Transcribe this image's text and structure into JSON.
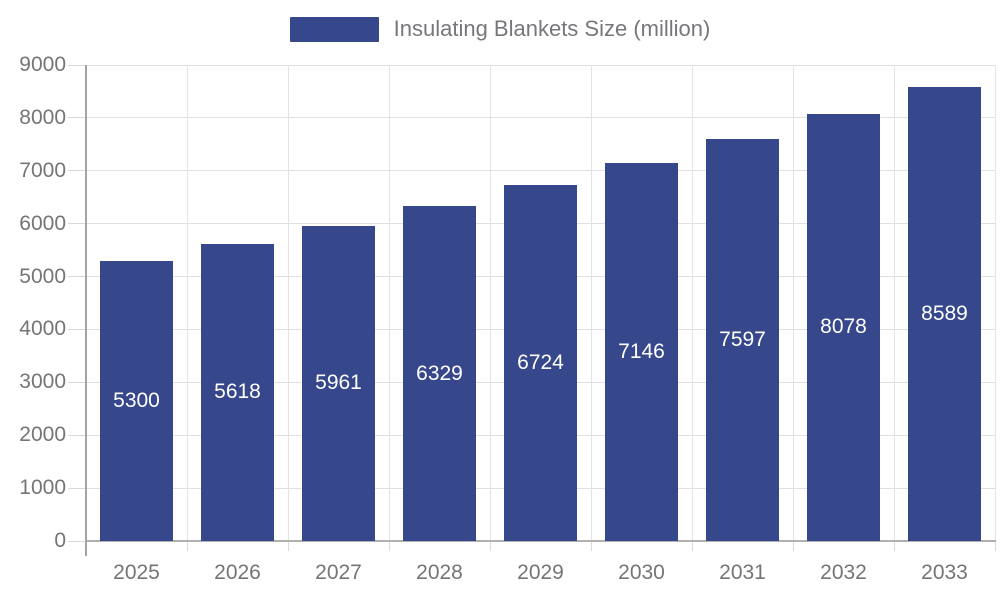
{
  "legend": {
    "label": "Insulating Blankets Size (million)"
  },
  "colors": {
    "bar": "#36478B",
    "grid": "#e0e0e0",
    "axis_y": "#a3a3a3",
    "axis_x": "#b0b0b0",
    "tick": "#d9d9d9",
    "axis_text": "#757575",
    "legend_text": "#75777a",
    "value_label_text": "#ffffff",
    "background": "#ffffff"
  },
  "chart_data": {
    "type": "bar",
    "title": "Insulating Blankets Size (million)",
    "categories": [
      "2025",
      "2026",
      "2027",
      "2028",
      "2029",
      "2030",
      "2031",
      "2032",
      "2033"
    ],
    "values": [
      5300,
      5618,
      5961,
      6329,
      6724,
      7146,
      7597,
      8078,
      8589
    ],
    "xlabel": "",
    "ylabel": "",
    "ylim": [
      0,
      9000
    ],
    "ytick_step": 1000,
    "ytick_labels": [
      "0",
      "1000",
      "2000",
      "3000",
      "4000",
      "5000",
      "6000",
      "7000",
      "8000",
      "9000"
    ],
    "grid": true,
    "legend_position": "top-center",
    "legend_entries": [
      "Insulating Blankets Size (million)"
    ],
    "bar_color": "#36478B",
    "value_labels": "inside-center"
  }
}
